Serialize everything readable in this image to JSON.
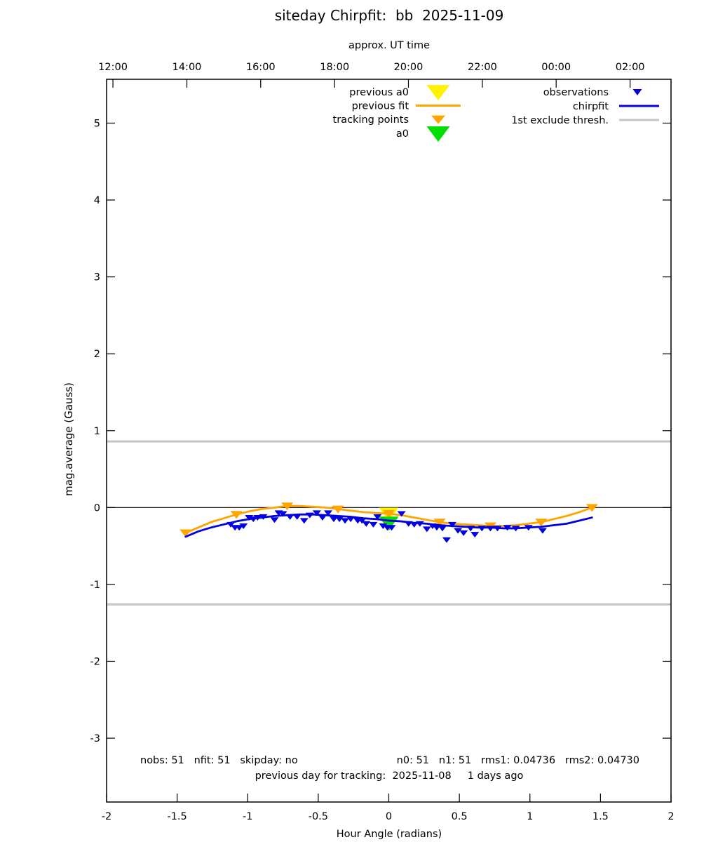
{
  "chart_data": {
    "type": "line",
    "title": "siteday Chirpfit:  bb  2025-11-09",
    "xlabel": "Hour Angle (radians)",
    "ylabel": "mag.average (Gauss)",
    "top_axis": {
      "label": "approx. UT time",
      "ticks": [
        {
          "label": "12:00",
          "x": -1.955
        },
        {
          "label": "14:00",
          "x": -1.431
        },
        {
          "label": "16:00",
          "x": -0.908
        },
        {
          "label": "18:00",
          "x": -0.384
        },
        {
          "label": "20:00",
          "x": 0.139
        },
        {
          "label": "22:00",
          "x": 0.663
        },
        {
          "label": "00:00",
          "x": 1.186
        },
        {
          "label": "02:00",
          "x": 1.71
        }
      ]
    },
    "xlim": [
      -2,
      2
    ],
    "ylim": [
      -3.83,
      5.57
    ],
    "x_ticks": [
      -2,
      -1.5,
      -1,
      -0.5,
      0,
      0.5,
      1,
      1.5,
      2
    ],
    "y_ticks": [
      -3,
      -2,
      -1,
      0,
      1,
      2,
      3,
      4,
      5
    ],
    "zero_line": 0,
    "exclude_thresholds": [
      0.86,
      -1.26
    ],
    "grid": false,
    "colors": {
      "orange": "#FFA500",
      "blue": "#0000E0",
      "yellow": "#FFF200",
      "green": "#00DF00",
      "gray": "#C4C4C4",
      "axis": "#000000"
    },
    "series": [
      {
        "name": "previous a0",
        "kind": "markers",
        "color": "#FFF200",
        "marker_size": [
          28,
          19
        ],
        "points": [
          [
            0.0,
            -0.08
          ]
        ]
      },
      {
        "name": "previous fit",
        "kind": "line",
        "color": "#FFA500",
        "points": [
          [
            -1.44,
            -0.33
          ],
          [
            -1.35,
            -0.26
          ],
          [
            -1.26,
            -0.19
          ],
          [
            -1.17,
            -0.14
          ],
          [
            -1.08,
            -0.09
          ],
          [
            -0.99,
            -0.05
          ],
          [
            -0.9,
            -0.02
          ],
          [
            -0.81,
            0.0
          ],
          [
            -0.72,
            0.02
          ],
          [
            -0.63,
            0.02
          ],
          [
            -0.54,
            0.01
          ],
          [
            -0.45,
            0.0
          ],
          [
            -0.36,
            -0.02
          ],
          [
            -0.27,
            -0.04
          ],
          [
            -0.18,
            -0.06
          ],
          [
            -0.09,
            -0.07
          ],
          [
            0.0,
            -0.08
          ],
          [
            0.09,
            -0.1
          ],
          [
            0.18,
            -0.13
          ],
          [
            0.27,
            -0.16
          ],
          [
            0.36,
            -0.19
          ],
          [
            0.45,
            -0.21
          ],
          [
            0.54,
            -0.22
          ],
          [
            0.63,
            -0.23
          ],
          [
            0.72,
            -0.24
          ],
          [
            0.81,
            -0.24
          ],
          [
            0.9,
            -0.23
          ],
          [
            0.99,
            -0.21
          ],
          [
            1.08,
            -0.19
          ],
          [
            1.17,
            -0.15
          ],
          [
            1.26,
            -0.11
          ],
          [
            1.35,
            -0.06
          ],
          [
            1.44,
            0.0
          ]
        ]
      },
      {
        "name": "tracking points",
        "kind": "markers",
        "color": "#FFA500",
        "marker_size": [
          17,
          11
        ],
        "points": [
          [
            -1.44,
            -0.33
          ],
          [
            -1.08,
            -0.09
          ],
          [
            -0.72,
            0.02
          ],
          [
            -0.36,
            -0.02
          ],
          [
            0.0,
            -0.08
          ],
          [
            0.36,
            -0.19
          ],
          [
            0.72,
            -0.24
          ],
          [
            1.08,
            -0.19
          ],
          [
            1.44,
            0.0
          ]
        ]
      },
      {
        "name": "a0",
        "kind": "markers",
        "color": "#00DF00",
        "marker_size": [
          28,
          20
        ],
        "points": [
          [
            0.0,
            -0.2
          ]
        ]
      },
      {
        "name": "chirpfit",
        "kind": "line",
        "color": "#0000E0",
        "points": [
          [
            -1.44,
            -0.38
          ],
          [
            -1.35,
            -0.31
          ],
          [
            -1.26,
            -0.26
          ],
          [
            -1.17,
            -0.22
          ],
          [
            -1.08,
            -0.18
          ],
          [
            -0.99,
            -0.15
          ],
          [
            -0.9,
            -0.13
          ],
          [
            -0.81,
            -0.11
          ],
          [
            -0.72,
            -0.1
          ],
          [
            -0.63,
            -0.09
          ],
          [
            -0.54,
            -0.09
          ],
          [
            -0.45,
            -0.1
          ],
          [
            -0.36,
            -0.11
          ],
          [
            -0.27,
            -0.12
          ],
          [
            -0.18,
            -0.14
          ],
          [
            -0.09,
            -0.15
          ],
          [
            0.0,
            -0.17
          ],
          [
            0.09,
            -0.18
          ],
          [
            0.18,
            -0.2
          ],
          [
            0.27,
            -0.21
          ],
          [
            0.36,
            -0.23
          ],
          [
            0.45,
            -0.24
          ],
          [
            0.54,
            -0.25
          ],
          [
            0.63,
            -0.26
          ],
          [
            0.72,
            -0.26
          ],
          [
            0.81,
            -0.27
          ],
          [
            0.9,
            -0.27
          ],
          [
            0.99,
            -0.26
          ],
          [
            1.08,
            -0.25
          ],
          [
            1.17,
            -0.23
          ],
          [
            1.26,
            -0.21
          ],
          [
            1.35,
            -0.17
          ],
          [
            1.44,
            -0.13
          ]
        ]
      },
      {
        "name": "observations",
        "kind": "markers",
        "color": "#0000E0",
        "marker_size": [
          12,
          8
        ],
        "points": [
          [
            -1.12,
            -0.22
          ],
          [
            -1.09,
            -0.26
          ],
          [
            -1.06,
            -0.26
          ],
          [
            -1.03,
            -0.24
          ],
          [
            -0.99,
            -0.13
          ],
          [
            -0.96,
            -0.15
          ],
          [
            -0.93,
            -0.13
          ],
          [
            -0.89,
            -0.12
          ],
          [
            -0.81,
            -0.16
          ],
          [
            -0.78,
            -0.07
          ],
          [
            -0.75,
            -0.08
          ],
          [
            -0.7,
            -0.12
          ],
          [
            -0.65,
            -0.12
          ],
          [
            -0.6,
            -0.17
          ],
          [
            -0.56,
            -0.1
          ],
          [
            -0.51,
            -0.07
          ],
          [
            -0.47,
            -0.13
          ],
          [
            -0.43,
            -0.07
          ],
          [
            -0.39,
            -0.15
          ],
          [
            -0.35,
            -0.15
          ],
          [
            -0.31,
            -0.17
          ],
          [
            -0.27,
            -0.15
          ],
          [
            -0.22,
            -0.17
          ],
          [
            -0.19,
            -0.17
          ],
          [
            -0.16,
            -0.21
          ],
          [
            -0.11,
            -0.22
          ],
          [
            -0.08,
            -0.12
          ],
          [
            -0.04,
            -0.24
          ],
          [
            -0.01,
            -0.26
          ],
          [
            0.02,
            -0.26
          ],
          [
            0.09,
            -0.08
          ],
          [
            0.14,
            -0.21
          ],
          [
            0.18,
            -0.22
          ],
          [
            0.22,
            -0.21
          ],
          [
            0.27,
            -0.28
          ],
          [
            0.31,
            -0.24
          ],
          [
            0.34,
            -0.26
          ],
          [
            0.38,
            -0.27
          ],
          [
            0.41,
            -0.42
          ],
          [
            0.45,
            -0.22
          ],
          [
            0.49,
            -0.3
          ],
          [
            0.53,
            -0.33
          ],
          [
            0.58,
            -0.27
          ],
          [
            0.61,
            -0.35
          ],
          [
            0.66,
            -0.27
          ],
          [
            0.72,
            -0.27
          ],
          [
            0.77,
            -0.27
          ],
          [
            0.84,
            -0.26
          ],
          [
            0.9,
            -0.27
          ],
          [
            0.99,
            -0.26
          ],
          [
            1.09,
            -0.3
          ]
        ]
      }
    ],
    "legend": {
      "left_column": [
        {
          "label": "previous a0",
          "marker": "triangle-large",
          "color": "#FFF200"
        },
        {
          "label": "previous fit",
          "marker": "line",
          "color": "#FFA500"
        },
        {
          "label": "tracking points",
          "marker": "triangle-small",
          "color": "#FFA500"
        },
        {
          "label": "a0",
          "marker": "triangle-large",
          "color": "#00DF00"
        }
      ],
      "right_column": [
        {
          "label": "observations",
          "marker": "triangle-tiny",
          "color": "#0000E0"
        },
        {
          "label": "chirpfit",
          "marker": "line",
          "color": "#0000E0"
        },
        {
          "label": "1st exclude thresh.",
          "marker": "line",
          "color": "#C4C4C4"
        }
      ]
    },
    "stats": {
      "nobs": "51",
      "nfit": "51",
      "skipday": "no",
      "n0": "51",
      "n1": "51",
      "rms1": "0.04736",
      "rms2": "0.04730",
      "previous_day_for_tracking": "2025-11-08",
      "days_ago": "1 days ago",
      "line1_left": "nobs: 51   nfit: 51   skipday: no",
      "line1_right": "n0: 51   n1: 51   rms1: 0.04736   rms2: 0.04730",
      "line2": "previous day for tracking:  2025-11-08     1 days ago"
    }
  }
}
